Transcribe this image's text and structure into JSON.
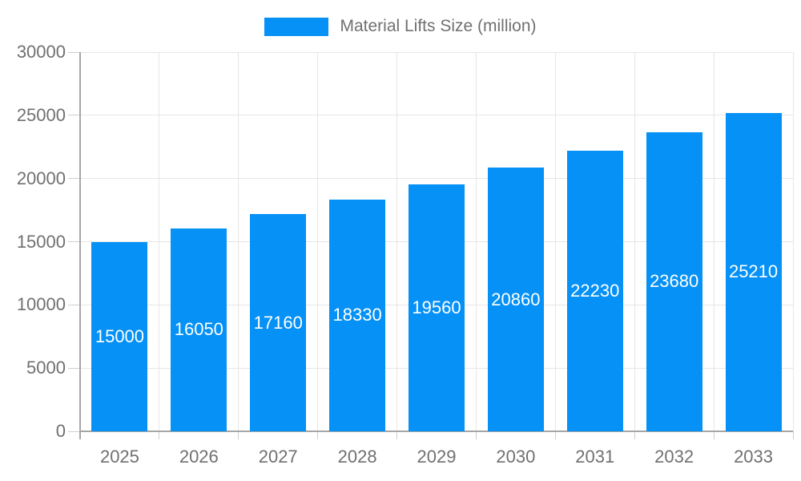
{
  "chart_data": {
    "type": "bar",
    "title": "Material Lifts Size (million)",
    "series_name": "Material Lifts Size (million)",
    "categories": [
      "2025",
      "2026",
      "2027",
      "2028",
      "2029",
      "2030",
      "2031",
      "2032",
      "2033"
    ],
    "values": [
      15000,
      16050,
      17160,
      18330,
      19560,
      20860,
      22230,
      23680,
      25210
    ],
    "xlabel": "",
    "ylabel": "",
    "ylim": [
      0,
      30000
    ],
    "yticks": [
      0,
      5000,
      10000,
      15000,
      20000,
      25000,
      30000
    ],
    "grid": true,
    "legend_position": "top",
    "bar_color": "#0591F5",
    "value_label_color": "#FFFFFF",
    "axis_text_color": "#707070",
    "grid_color": "#E6E6E6",
    "axis_line_color": "#A6A6A6",
    "tick_color": "#CFCFCF",
    "background": "#FFFFFF"
  }
}
